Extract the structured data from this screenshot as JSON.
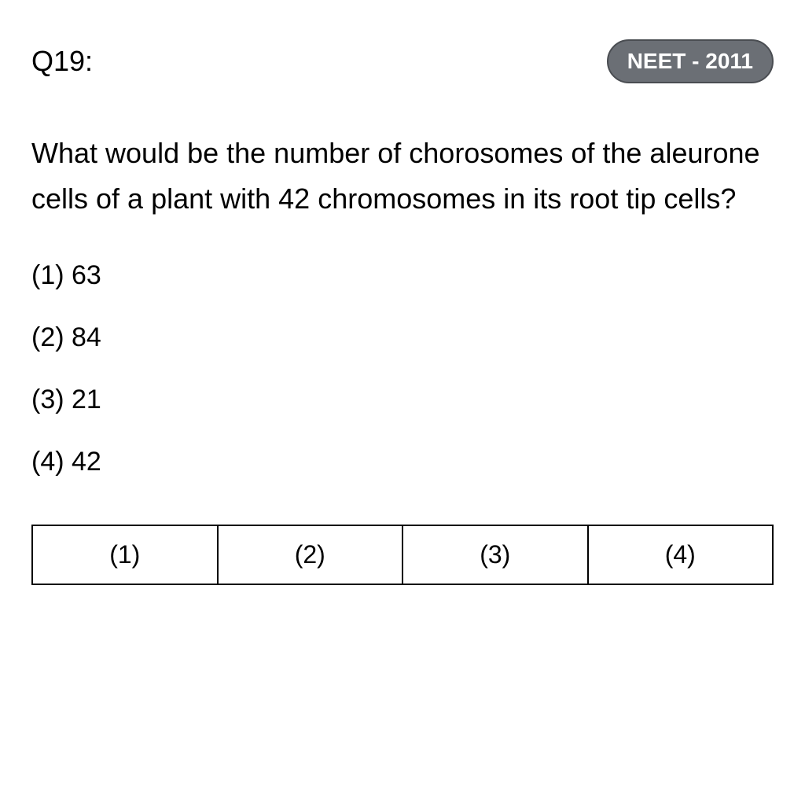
{
  "header": {
    "question_number": "Q19:",
    "exam_badge": "NEET - 2011",
    "badge_bg_color": "#6b6f75",
    "badge_text_color": "#ffffff",
    "badge_border_color": "#4a4d52"
  },
  "question": {
    "text": "What would be the number of chorosomes of the aleurone cells of a plant with 42 chromosomes in its root tip cells?",
    "fontsize": 36,
    "color": "#000000"
  },
  "options": [
    {
      "label": "(1)",
      "value": "63"
    },
    {
      "label": "(2)",
      "value": "84"
    },
    {
      "label": "(3)",
      "value": "21"
    },
    {
      "label": "(4)",
      "value": "42"
    }
  ],
  "answer_boxes": [
    {
      "label": "(1)"
    },
    {
      "label": "(2)"
    },
    {
      "label": "(3)"
    },
    {
      "label": "(4)"
    }
  ],
  "styling": {
    "background_color": "#ffffff",
    "text_color": "#000000",
    "border_color": "#000000",
    "option_fontsize": 34,
    "answer_fontsize": 32,
    "header_fontsize": 36,
    "badge_fontsize": 28
  }
}
